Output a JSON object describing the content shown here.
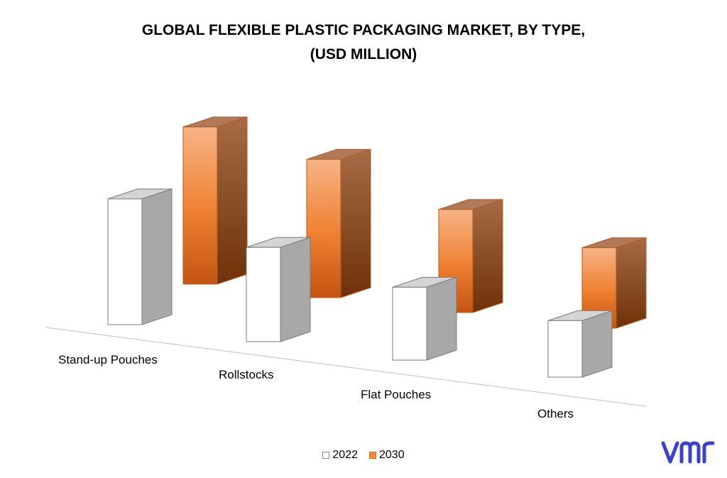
{
  "chart_data": {
    "type": "bar",
    "title_lines": [
      "GLOBAL FLEXIBLE PLASTIC PACKAGING MARKET, BY TYPE,",
      "(USD MILLION)"
    ],
    "categories": [
      "Stand-up Pouches",
      "Rollstocks",
      "Flat Pouches",
      "Others"
    ],
    "series": [
      {
        "name": "2022",
        "values": [
          100,
          75,
          58,
          45
        ]
      },
      {
        "name": "2030",
        "values": [
          125,
          110,
          82,
          64
        ]
      }
    ],
    "style": "3d-column",
    "grid": false,
    "legend_position": "bottom",
    "colors": {
      "2022": "#ffffff",
      "2030": "#f08a3e"
    }
  },
  "logo": {
    "text": "vmr",
    "color": "#3a3fd6"
  }
}
